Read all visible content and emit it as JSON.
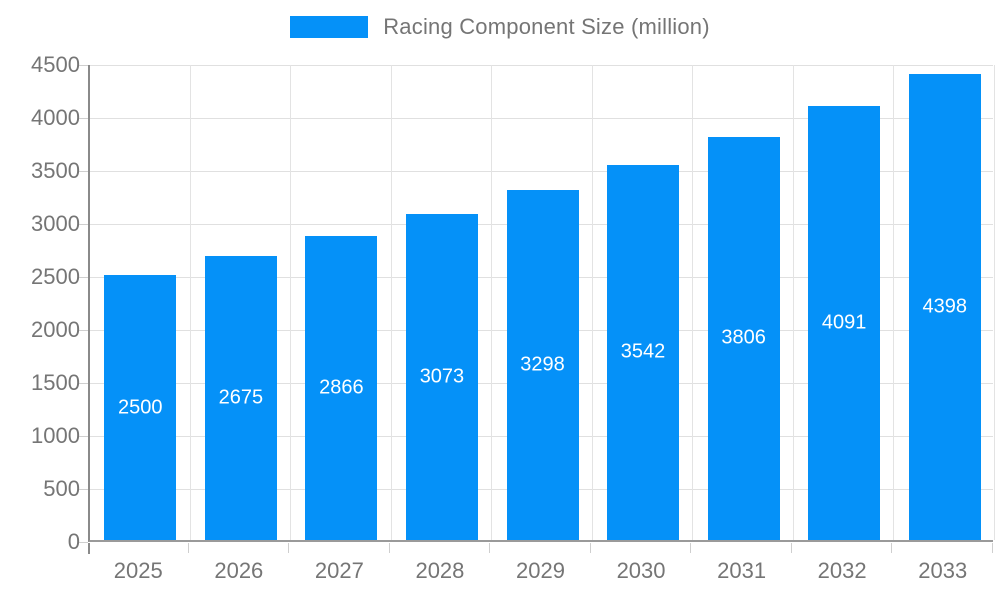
{
  "chart_data": {
    "type": "bar",
    "title": "Racing Component Size (million)",
    "categories": [
      "2025",
      "2026",
      "2027",
      "2028",
      "2029",
      "2030",
      "2031",
      "2032",
      "2033"
    ],
    "values": [
      2500,
      2675,
      2866,
      3073,
      3298,
      3542,
      3806,
      4091,
      4398
    ],
    "xlabel": "",
    "ylabel": "",
    "ylim": [
      0,
      4500
    ],
    "yticks": [
      0,
      500,
      1000,
      1500,
      2000,
      2500,
      3000,
      3500,
      4000,
      4500
    ],
    "grid": true,
    "legend_position": "top-center",
    "value_labels": "inside-center",
    "colors": {
      "bar": "#0591F8",
      "value_label_text": "#ffffff",
      "axis_label_text": "#757575",
      "grid_line": "#e0e0e0",
      "axis_line": "#8a8a8a",
      "background": "#ffffff"
    }
  }
}
